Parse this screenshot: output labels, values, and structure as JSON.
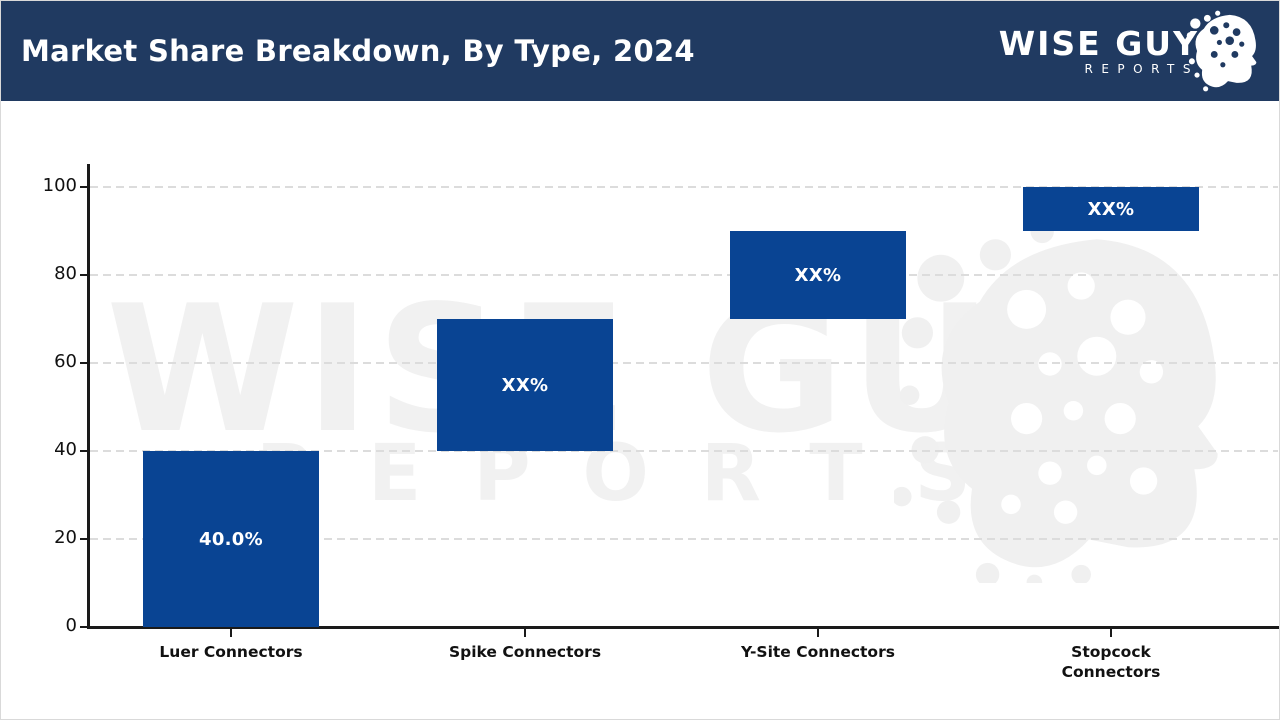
{
  "header": {
    "title": "Market Share Breakdown, By Type, 2024",
    "bg_color": "#203a61",
    "logo": {
      "line1": "WISE GUY",
      "line2": "REPORTS"
    }
  },
  "watermark": {
    "line1": "WISE GUY",
    "line2": "REPORTS"
  },
  "chart_data": {
    "type": "bar",
    "variant": "stacked-waterfall",
    "title": "Market Share Breakdown, By Type, 2024",
    "categories": [
      "Luer Connectors",
      "Spike Connectors",
      "Y-Site Connectors",
      "Stopcock Connectors"
    ],
    "tick_labels": [
      "Luer Connectors",
      "Spike Connectors",
      "Y-Site Connectors",
      "Stopcock\nConnectors"
    ],
    "segments": [
      {
        "category": "Luer Connectors",
        "from": 0,
        "to": 40,
        "value_label": "40.0%"
      },
      {
        "category": "Spike Connectors",
        "from": 40,
        "to": 70,
        "value_label": "XX%"
      },
      {
        "category": "Y-Site Connectors",
        "from": 70,
        "to": 90,
        "value_label": "XX%"
      },
      {
        "category": "Stopcock Connectors",
        "from": 90,
        "to": 100,
        "value_label": "XX%"
      }
    ],
    "xlabel": "",
    "ylabel": "",
    "ylim": [
      0,
      100
    ],
    "yticks": [
      0,
      20,
      40,
      60,
      80,
      100
    ],
    "grid": {
      "horizontal": true,
      "style": "dashed",
      "color": "#dcdcdc"
    },
    "legend": "none",
    "bar_color": "#094493",
    "bar_label_color": "#ffffff",
    "axis_color": "#1a1a1a"
  }
}
